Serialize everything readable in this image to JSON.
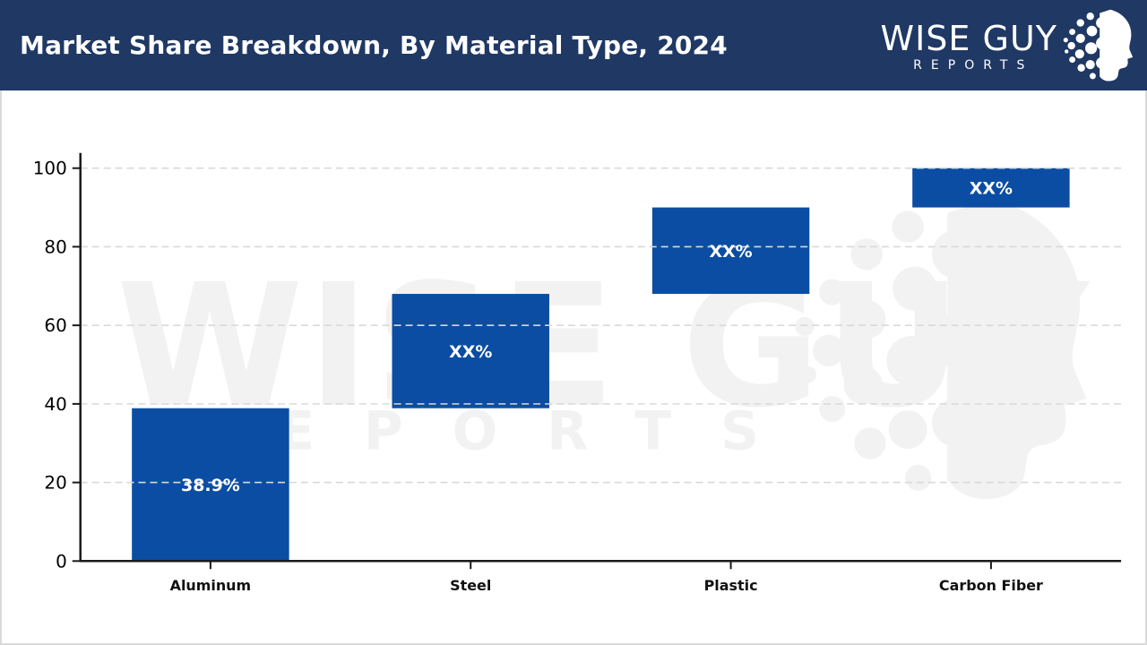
{
  "header": {
    "title": "Market Share Breakdown, By Material Type, 2024"
  },
  "logo": {
    "wordmark": "WISE GUY",
    "subtext": "REPORTS"
  },
  "watermark": {
    "wordmark": "WISE GUY",
    "subtext": "REPORTS"
  },
  "chart_data": {
    "type": "waterfall",
    "title": "Market Share Breakdown, By Material Type, 2024",
    "categories": [
      "Aluminum",
      "Steel",
      "Plastic",
      "Carbon Fiber"
    ],
    "series": [
      {
        "name": "Market Share",
        "segments": [
          [
            0,
            38.9
          ],
          [
            38.9,
            68
          ],
          [
            68,
            90
          ],
          [
            90,
            100
          ]
        ]
      }
    ],
    "bar_labels": [
      "38.9%",
      "XX%",
      "XX%",
      "XX%"
    ],
    "xlabel": "",
    "ylabel": "",
    "ylim": [
      0,
      100
    ],
    "yticks": [
      0,
      20,
      40,
      60,
      80,
      100
    ],
    "grid": {
      "axis": "y",
      "style": "dashed",
      "color": "#d9d9d9"
    },
    "legend": "none",
    "colors": {
      "bar": "#0b4da2",
      "bar_label": "#ffffff",
      "axis": "#1a1a1a",
      "tick_label": "#000000",
      "header_bg": "#1f3864",
      "watermark": "#f2f2f2"
    }
  }
}
